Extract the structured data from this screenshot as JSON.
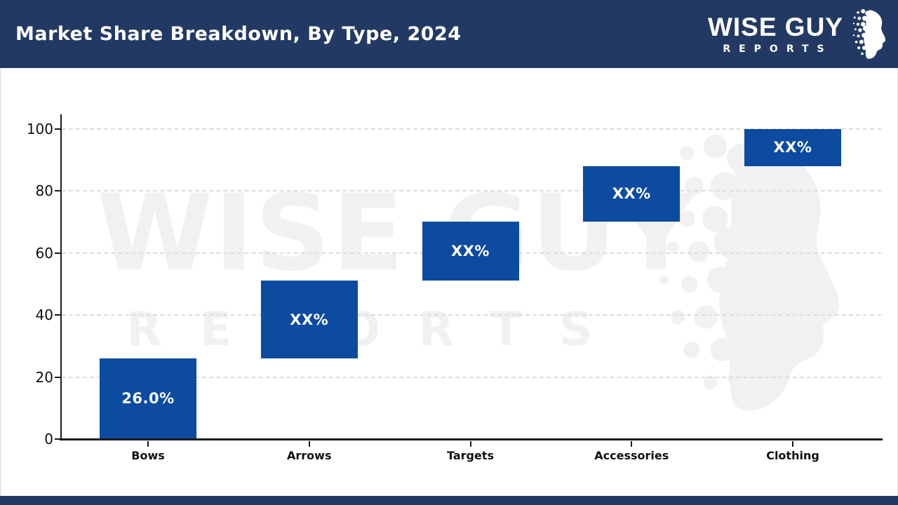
{
  "header": {
    "title": "Market Share Breakdown, By Type, 2024",
    "logo": {
      "line1": "WISE GUY",
      "line2": "REPORTS"
    }
  },
  "watermark": {
    "line1": "WISE GUY",
    "line2": "REPORTS"
  },
  "colors": {
    "header_bg": "#223A63",
    "footer_bg": "#223A63",
    "header_text": "#FFFFFF",
    "bar": "#0C4BA0",
    "bar_label_text": "#FFFFFF",
    "grid": "#DCDCDC",
    "axis": "#1A1A1A",
    "watermark": "#F1F1F1"
  },
  "chart_data": {
    "type": "bar",
    "subtype": "waterfall",
    "title": "Market Share Breakdown, By Type, 2024",
    "categories": [
      "Bows",
      "Arrows",
      "Targets",
      "Accessories",
      "Clothing"
    ],
    "segments": [
      {
        "category": "Bows",
        "start": 0,
        "end": 26,
        "label": "26.0%"
      },
      {
        "category": "Arrows",
        "start": 26,
        "end": 51,
        "label": "XX%"
      },
      {
        "category": "Targets",
        "start": 51,
        "end": 70,
        "label": "XX%"
      },
      {
        "category": "Accessories",
        "start": 70,
        "end": 88,
        "label": "XX%"
      },
      {
        "category": "Clothing",
        "start": 88,
        "end": 100,
        "label": "XX%"
      }
    ],
    "ylabel": "",
    "xlabel": "",
    "yticks": [
      0,
      20,
      40,
      60,
      80,
      100
    ],
    "ylim": [
      0,
      105
    ],
    "grid": true,
    "legend": false
  }
}
